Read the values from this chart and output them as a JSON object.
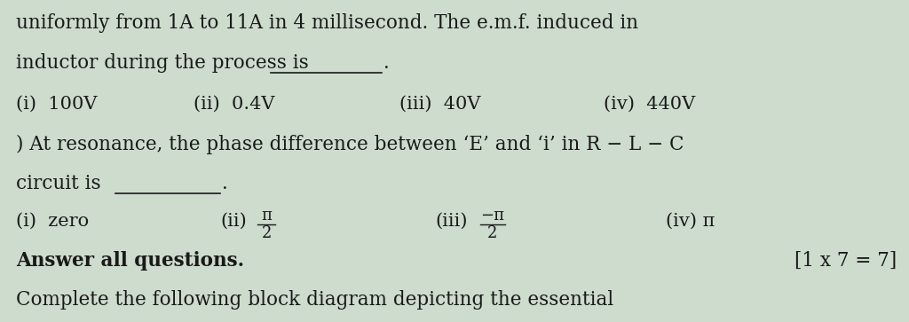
{
  "bg_color": "#cddccd",
  "text_color": "#1a1a1a",
  "line1": "uniformly from 1A to 11A in 4 millisecond. The e.m.f. induced in",
  "line2": "inductor during the process is",
  "options_row1": [
    {
      "label": "(i)",
      "value": "100V"
    },
    {
      "label": "(ii)",
      "value": "0.4V"
    },
    {
      "label": "(iii)",
      "value": "40V"
    },
    {
      "label": "(iv)",
      "value": "440V"
    }
  ],
  "line3a": ") At resonance, the phase difference between ‘E’ and ‘i’ in R − L − C",
  "line3b": "circuit is",
  "options_row2_i": "(i)  zero",
  "options_row2_ii_pre": "(ii)",
  "options_row2_ii_num": "π",
  "options_row2_ii_den": "2",
  "options_row2_iii_pre": "(iii)",
  "options_row2_iii_num": "−π",
  "options_row2_iii_den": "2",
  "options_row2_iv": "(iv) π",
  "answer_line_left": "Answer all questions.",
  "answer_line_right": "[1 x 7 = 7]",
  "last_line": "Complete the following block diagram depicting the essential",
  "font_size_main": 15.5,
  "font_size_options": 15,
  "font_size_answer": 15.5
}
